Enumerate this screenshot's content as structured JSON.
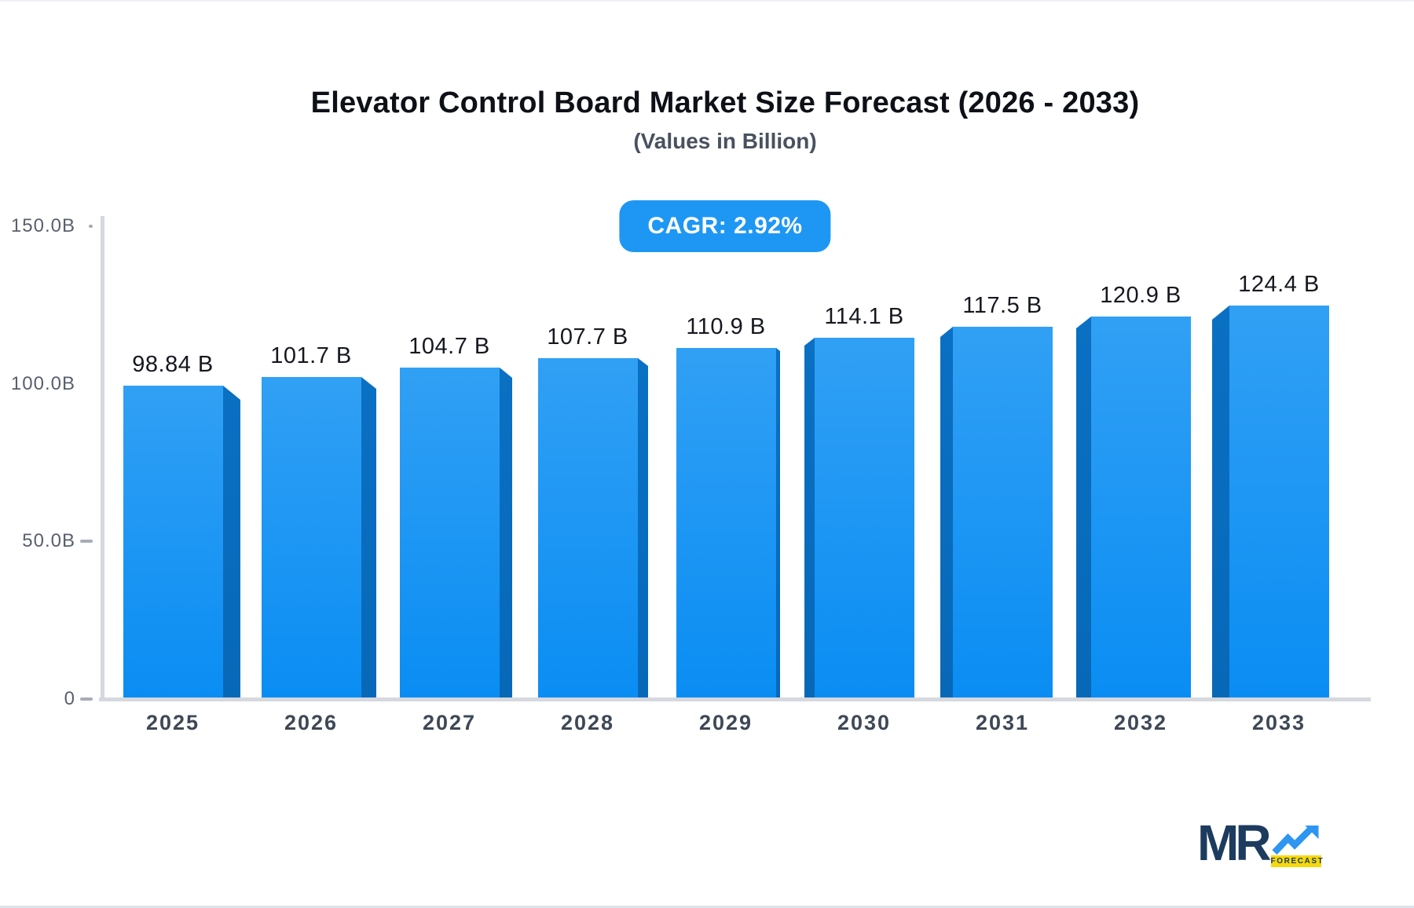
{
  "header": {
    "title": "Elevator Control Board Market Size Forecast (2026 - 2033)",
    "subtitle": "(Values in Billion)",
    "cagr_badge": "CAGR: 2.92%"
  },
  "chart_data": {
    "type": "bar",
    "title": "Elevator Control Board Market Size Forecast (2026 - 2033)",
    "subtitle": "(Values in Billion)",
    "cagr_label": "CAGR: 2.92%",
    "cagr_percent": 2.92,
    "unit": "Billion",
    "categories": [
      "2025",
      "2026",
      "2027",
      "2028",
      "2029",
      "2030",
      "2031",
      "2032",
      "2033"
    ],
    "values": [
      98.84,
      101.7,
      104.7,
      107.7,
      110.9,
      114.1,
      117.5,
      120.9,
      124.4
    ],
    "value_labels": [
      "98.84 B",
      "101.7 B",
      "104.7 B",
      "107.7 B",
      "110.9 B",
      "114.1 B",
      "117.5 B",
      "120.9 B",
      "124.4 B"
    ],
    "ylim": [
      0,
      150
    ],
    "y_ticks": [
      {
        "label": "150.0B",
        "value": 150
      },
      {
        "label": "100.0B",
        "value": 100
      },
      {
        "label": "50.0B",
        "value": 50
      },
      {
        "label": "0",
        "value": 0
      }
    ],
    "grid": false,
    "legend": false,
    "colors": {
      "bar_front_top": "#31a0f4",
      "bar_front_bottom": "#0a8df3",
      "bar_side": "#0a70c3",
      "badge_bg": "#1e97f4",
      "axis_line": "#d5d8de",
      "tick_mark": "#a6adb8",
      "y_label": "#59606d",
      "x_label": "#3e4856",
      "value_label": "#15181f",
      "title": "#0d1117",
      "subtitle": "#49515f"
    }
  },
  "logo": {
    "mr": "MR",
    "forecast": "FORECAST"
  }
}
